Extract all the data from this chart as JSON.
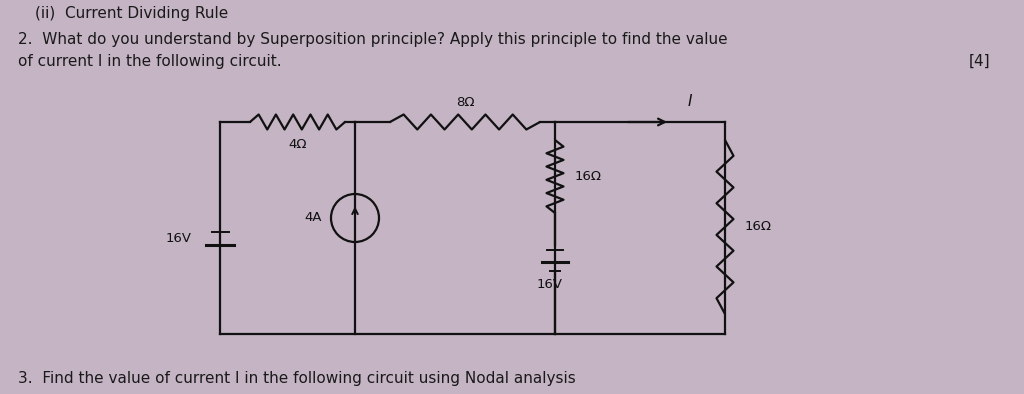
{
  "bg_color": "#c4b4c4",
  "title_line1": "(ii)  Current Dividing Rule",
  "title_line2": "2.  What do you understand by Superposition principle? Apply this principle to find the value",
  "title_line3": "of current I in the following circuit.",
  "marks": "[4]",
  "bottom_text": "3.  Find the value of current I in the following circuit using Nodal analysis",
  "circuit": {
    "left_voltage": "16V",
    "resistor1": "4Ω",
    "current_source": "4A",
    "resistor2": "8Ω",
    "resistor3": "16Ω",
    "resistor4": "16Ω",
    "right_voltage": "16V",
    "current_label": "I"
  }
}
